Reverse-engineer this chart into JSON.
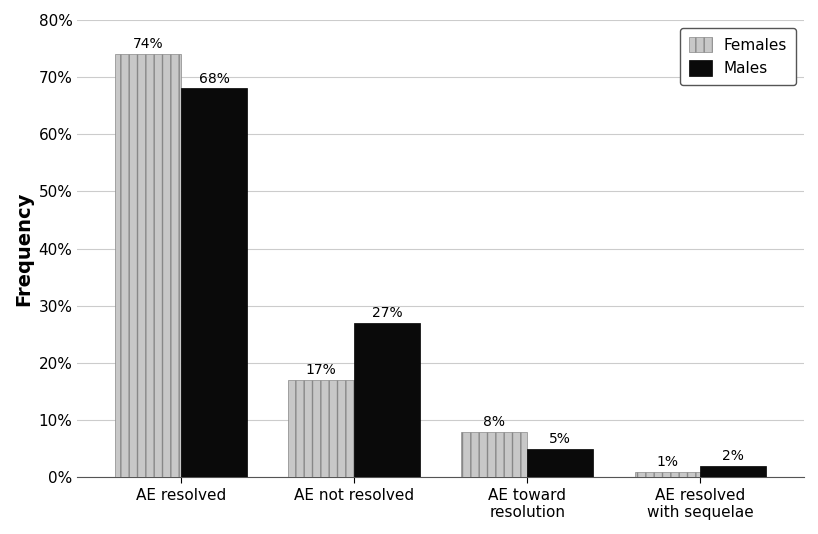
{
  "categories": [
    "AE resolved",
    "AE not resolved",
    "AE toward\nresolution",
    "AE resolved\nwith sequelae"
  ],
  "females": [
    74,
    17,
    8,
    1
  ],
  "males": [
    68,
    27,
    5,
    2
  ],
  "female_color": "#c8c8c8",
  "male_color": "#0a0a0a",
  "ylabel": "Frequency",
  "ylim": [
    0,
    80
  ],
  "yticks": [
    0,
    10,
    20,
    30,
    40,
    50,
    60,
    70,
    80
  ],
  "ytick_labels": [
    "0%",
    "10%",
    "20%",
    "30%",
    "40%",
    "50%",
    "60%",
    "70%",
    "80%"
  ],
  "bar_width": 0.38,
  "legend_labels": [
    "Females",
    "Males"
  ],
  "background_color": "#ffffff",
  "font_size_labels": 11,
  "font_size_ticks": 11,
  "font_size_ylabel": 14,
  "font_size_annotations": 10,
  "hatch_color": "#888888"
}
